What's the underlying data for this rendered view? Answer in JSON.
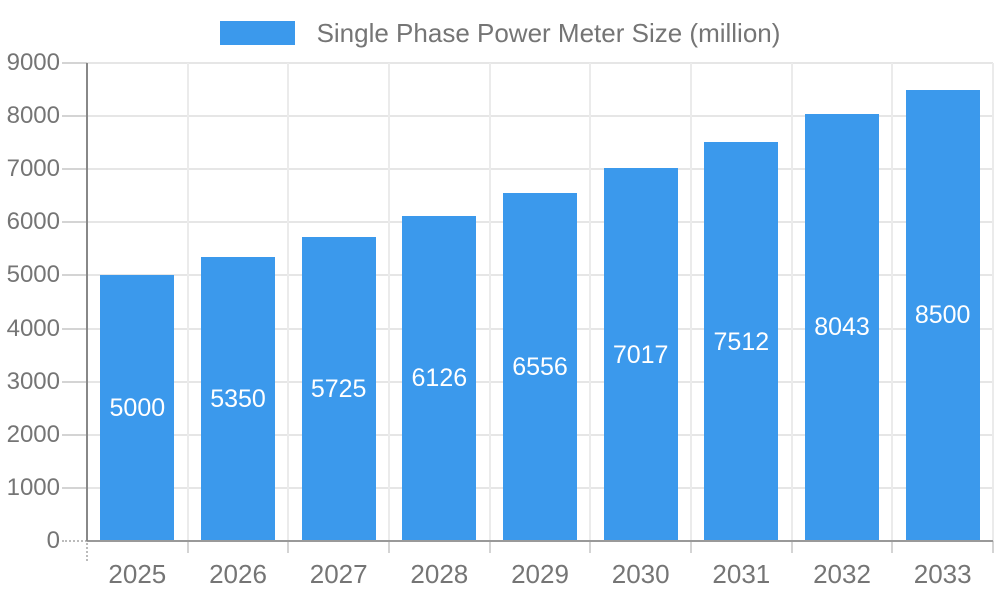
{
  "legend": {
    "label": "Single Phase Power Meter Size (million)"
  },
  "chart_data": {
    "type": "bar",
    "title": "Single Phase Power Meter Size (million)",
    "categories": [
      "2025",
      "2026",
      "2027",
      "2028",
      "2029",
      "2030",
      "2031",
      "2032",
      "2033"
    ],
    "series": [
      {
        "name": "Single Phase Power Meter Size (million)",
        "values": [
          5000,
          5350,
          5725,
          6126,
          6556,
          7017,
          7512,
          8043,
          8500
        ]
      }
    ],
    "value_labels": [
      "5000",
      "5350",
      "5725",
      "6126",
      "6556",
      "7017",
      "7512",
      "8043",
      "8500"
    ],
    "xlabel": "",
    "ylabel": "",
    "ylim": [
      0,
      9000
    ],
    "y_ticks": [
      0,
      1000,
      2000,
      3000,
      4000,
      5000,
      6000,
      7000,
      8000,
      9000
    ],
    "grid": true,
    "legend_position": "top",
    "colors": {
      "bar": "#3B99EC",
      "value_label": "#ffffff",
      "axis_text": "#757575",
      "grid_h": "#e6e6e6",
      "grid_v": "#ebebeb",
      "axis_line_y": "#888888",
      "axis_line_x": "#999999",
      "tick": "#d4d4d4",
      "tick_dotted": "#bbbbbb"
    }
  }
}
